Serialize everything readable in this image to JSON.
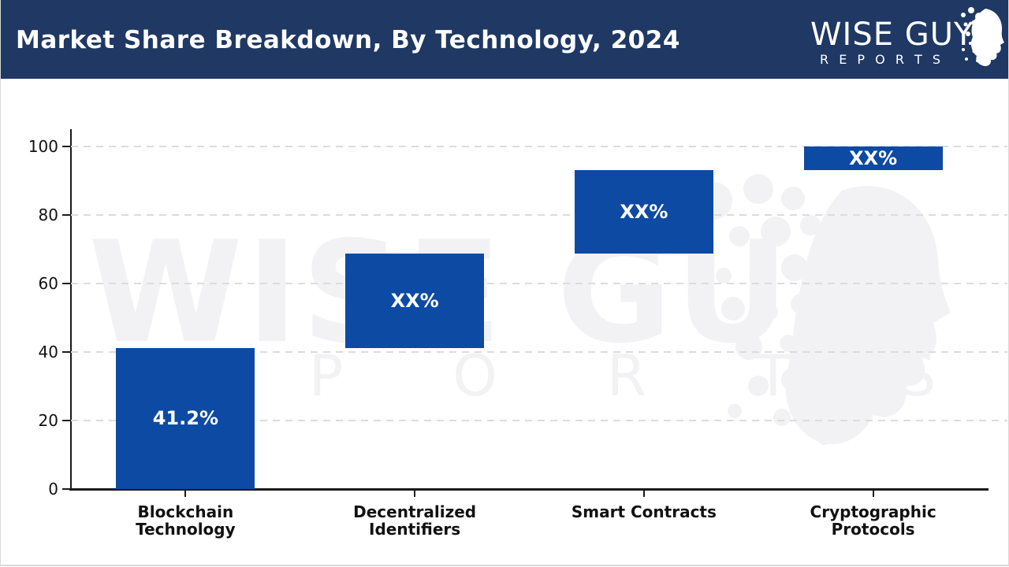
{
  "header": {
    "title": "Market Share Breakdown, By Technology, 2024",
    "logo": {
      "line1": "WISE GUY",
      "line2": "R E P O R T S"
    }
  },
  "watermark": {
    "line1": "WISE GU",
    "line2": "P O R T S"
  },
  "chart_data": {
    "type": "bar",
    "subtype": "waterfall",
    "title": "Market Share Breakdown, By Technology, 2024",
    "categories": [
      "Blockchain\nTechnology",
      "Decentralized\nIdentifiers",
      "Smart Contracts",
      "Cryptographic\nProtocols"
    ],
    "segments": [
      {
        "category": "Blockchain Technology",
        "start": 0,
        "end": 41.2,
        "label": "41.2%"
      },
      {
        "category": "Decentralized Identifiers",
        "start": 41.2,
        "end": 68.8,
        "label": "XX%"
      },
      {
        "category": "Smart Contracts",
        "start": 68.8,
        "end": 93,
        "label": "XX%"
      },
      {
        "category": "Cryptographic Protocols",
        "start": 93,
        "end": 100,
        "label": "XX%"
      }
    ],
    "y_ticks": [
      0,
      20,
      40,
      60,
      80,
      100
    ],
    "ylim": [
      0,
      100
    ],
    "xlabel": "",
    "ylabel": "",
    "grid": "horizontal-dashed",
    "legend": "none",
    "bar_color": "#0d4aa3",
    "bar_label_color": "#ffffff",
    "header_color": "#1f3864"
  }
}
